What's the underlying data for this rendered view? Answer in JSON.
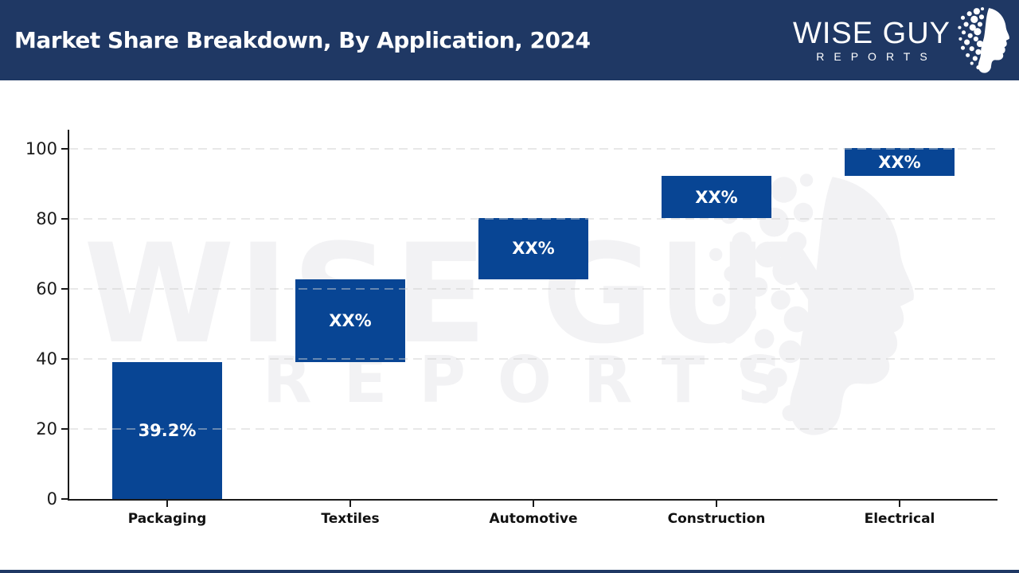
{
  "header": {
    "title": "Market Share Breakdown, By Application, 2024",
    "logo_line1": "WISE GUY",
    "logo_line2": "REPORTS"
  },
  "watermark": {
    "line1": "WISE GUY",
    "line2": "REPORTS"
  },
  "chart_data": {
    "type": "bar",
    "subtype": "waterfall",
    "title": "Market Share Breakdown, By Application, 2024",
    "categories": [
      "Packaging",
      "Textiles",
      "Automotive",
      "Construction",
      "Electrical"
    ],
    "segments": [
      {
        "category": "Packaging",
        "start": 0,
        "end": 39.2,
        "label": "39.2%"
      },
      {
        "category": "Textiles",
        "start": 39.2,
        "end": 62.7,
        "label": "XX%"
      },
      {
        "category": "Automotive",
        "start": 62.7,
        "end": 80.3,
        "label": "XX%"
      },
      {
        "category": "Construction",
        "start": 80.3,
        "end": 92.2,
        "label": "XX%"
      },
      {
        "category": "Electrical",
        "start": 92.2,
        "end": 100.2,
        "label": "XX%"
      }
    ],
    "xlabel": "",
    "ylabel": "",
    "ylim": [
      0,
      105.5
    ],
    "yticks": [
      0,
      20,
      40,
      60,
      80,
      100
    ],
    "ytick_labels": [
      "0",
      "20",
      "40",
      "60",
      "80",
      "100"
    ],
    "grid": "horizontal-dashed-above-bars",
    "legend": "none",
    "bar_color": "#084594",
    "value_label_color": "#ffffff"
  },
  "colors": {
    "header_navy": "#1f3864",
    "bar_blue": "#084594",
    "axis": "#1a1a1a",
    "grid": "#cfcfcf",
    "watermark": "#f2f2f4",
    "background": "#ffffff"
  }
}
